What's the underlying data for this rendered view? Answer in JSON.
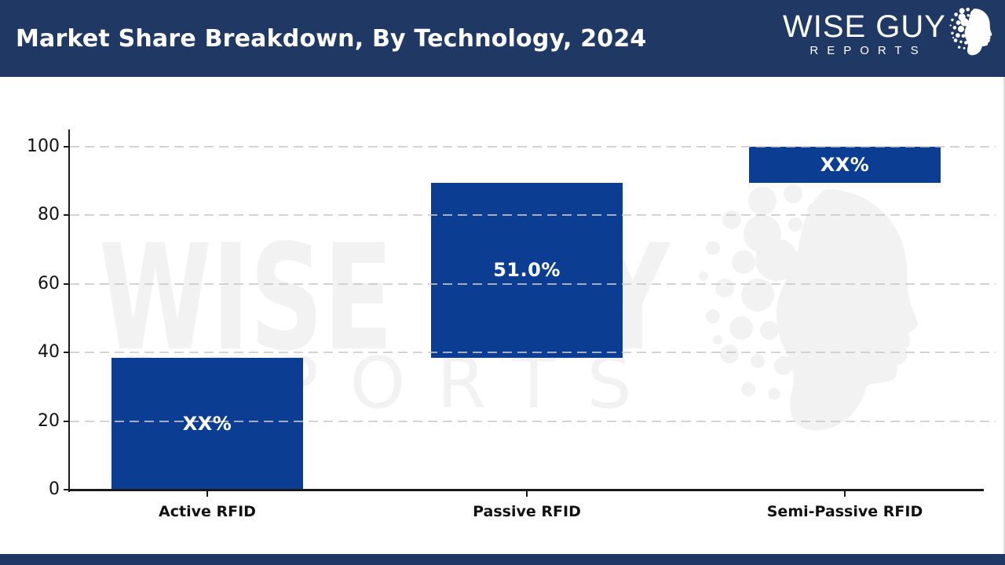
{
  "header": {
    "title": "Market Share Breakdown, By Technology, 2024",
    "bg_color": "#1F3864",
    "logo": {
      "line1": "WISE GUY",
      "line2": "REPORTS"
    }
  },
  "watermark": {
    "line1": "WISE GUY",
    "line2": "REPORTS"
  },
  "footer": {
    "bg_color": "#1F3864"
  },
  "chart_data": {
    "type": "bar",
    "variant": "stacked-waterfall (floating segments that sum to 100%)",
    "title": "Market Share Breakdown, By Technology, 2024",
    "categories": [
      "Active RFID",
      "Passive RFID",
      "Semi-Passive RFID"
    ],
    "bar_labels": [
      "XX%",
      "51.0%",
      "XX%"
    ],
    "bar_ranges_pct": [
      [
        0,
        38.5
      ],
      [
        38.5,
        89.5
      ],
      [
        89.5,
        100
      ]
    ],
    "segment_sizes_pct": [
      38.5,
      51.0,
      10.5
    ],
    "xlabel": "",
    "ylabel": "",
    "ylim": [
      0,
      100
    ],
    "yticks": [
      0,
      20,
      40,
      60,
      80,
      100
    ],
    "grid": "horizontal dashed lines drawn over bars",
    "legend": "none",
    "bar_color": "#0B3E92",
    "grid_color": "#C9C9C9",
    "axis_color": "#1A1A1A",
    "tick_label_color": "#111111",
    "bar_label_color": "#FFFFFF"
  }
}
